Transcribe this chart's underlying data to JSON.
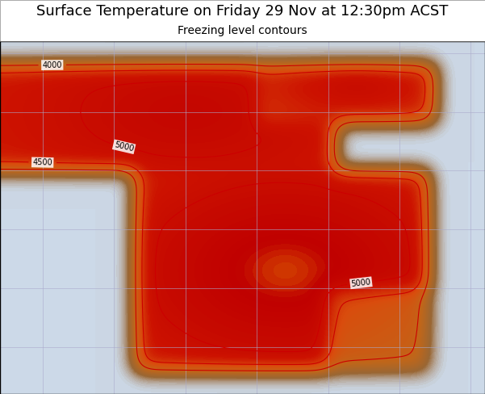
{
  "title": "Surface Temperature on Friday 29 Nov at 12:30pm ACST",
  "subtitle": "Freezing level contours",
  "title_fontsize": 13,
  "subtitle_fontsize": 10,
  "background_color": "#ffffff",
  "ocean_color": "#cdd8e8",
  "fig_width": 6.01,
  "fig_height": 4.88,
  "dpi": 100,
  "lon_min": 94,
  "lon_max": 162,
  "lat_min": -48,
  "lat_max": 12,
  "contour_levels": [
    4000,
    4500,
    5000
  ],
  "contour_color": "#cc0000",
  "contour_label_fontsize": 7,
  "grid_color": "#aaaacc",
  "grid_linewidth": 0.4,
  "land_colors": {
    "hot_red": "#cc1100",
    "warm_orange": "#cc5500",
    "medium_brown": "#aa6600",
    "cool_brown": "#996633"
  },
  "colormap_colors": [
    "#996633",
    "#aa6600",
    "#cc5500",
    "#dd3300",
    "#cc1100",
    "#bb0000",
    "#ff0000"
  ]
}
